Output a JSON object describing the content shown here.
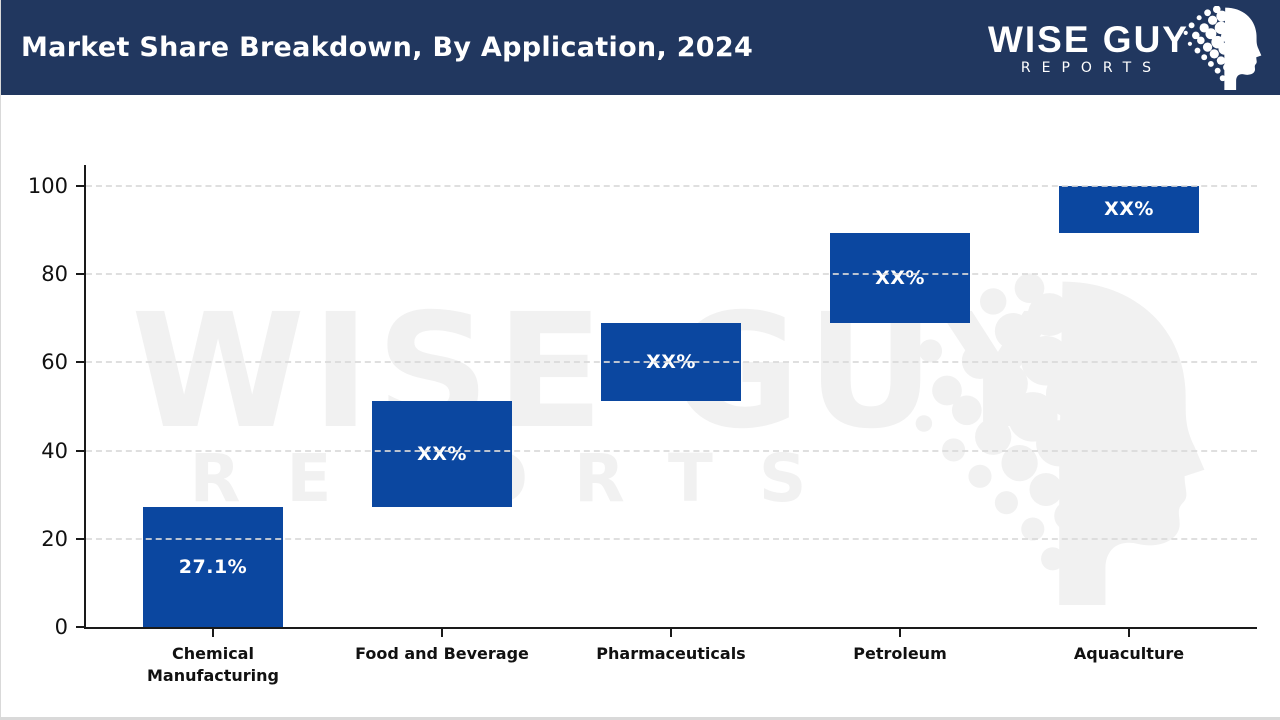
{
  "header": {
    "title": "Market Share Breakdown, By Application, 2024",
    "background_color": "#21375f",
    "logo": {
      "line1": "WISE GUY",
      "line2": "REPORTS"
    }
  },
  "watermark": {
    "line1": "WISE GUY",
    "line2": "REPORTS"
  },
  "chart_data": {
    "type": "bar",
    "subtype": "waterfall",
    "title": "Market Share Breakdown, By Application, 2024",
    "xlabel": "",
    "ylabel": "",
    "categories": [
      "Chemical Manufacturing",
      "Food and Beverage",
      "Pharmaceuticals",
      "Petroleum",
      "Aquaculture"
    ],
    "segments": [
      {
        "category": "Chemical Manufacturing",
        "start": 0,
        "end": 27.1,
        "label": "27.1%"
      },
      {
        "category": "Food and Beverage",
        "start": 27.1,
        "end": 51.3,
        "label": "XX%"
      },
      {
        "category": "Pharmaceuticals",
        "start": 51.3,
        "end": 69.0,
        "label": "XX%"
      },
      {
        "category": "Petroleum",
        "start": 69.0,
        "end": 89.4,
        "label": "XX%"
      },
      {
        "category": "Aquaculture",
        "start": 89.4,
        "end": 100,
        "label": "XX%"
      }
    ],
    "yticks": [
      0,
      20,
      40,
      60,
      80,
      100
    ],
    "ylim": [
      0,
      105
    ],
    "grid": true,
    "grid_style": "dashed",
    "legend": false,
    "bar_color": "#0b47a0",
    "bar_label_color": "#ffffff",
    "axis_color": "#1a1a1a",
    "grid_color": "#d9d9d9",
    "watermark_color": "#f1f1f1"
  }
}
